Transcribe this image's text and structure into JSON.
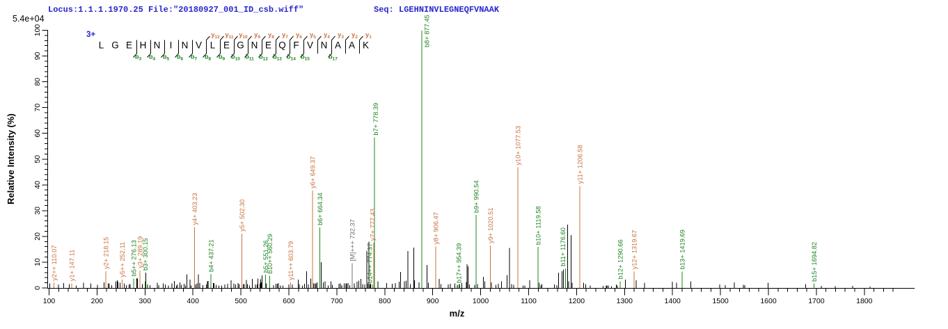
{
  "header": {
    "locus_file": "Locus:1.1.1.1970.25 File:\"20180927_001_ID_csb.wiff\"",
    "seq_prefix": "Seq: ",
    "sequence": "LGEHNINVLEGNEQFVNAAK",
    "max_intensity_label": "5.4e+04",
    "precursor_charge_label": "3+"
  },
  "colors": {
    "header_blue": "#2727CC",
    "y_ion_orange": "#C8703E",
    "b_ion_green": "#1E8420",
    "precursor_gray": "#707070",
    "axis_black": "#000000",
    "noise_black": "#000000"
  },
  "peptide_panel": {
    "residues": [
      "L",
      "G",
      "E",
      "H",
      "N",
      "I",
      "N",
      "V",
      "L",
      "E",
      "G",
      "N",
      "E",
      "Q",
      "F",
      "V",
      "N",
      "A",
      "A",
      "K"
    ],
    "b_ion_boundaries": [
      3,
      4,
      5,
      6,
      7,
      8,
      9,
      10,
      11,
      12,
      13,
      14,
      15,
      17
    ],
    "y_ion_boundaries": [
      8,
      9,
      10,
      11,
      12,
      13,
      14,
      15,
      16,
      17,
      18,
      19
    ],
    "y_ion_numbers": [
      12,
      11,
      10,
      9,
      8,
      7,
      6,
      5,
      4,
      3,
      2,
      1
    ]
  },
  "axes": {
    "x": {
      "label": "m/z",
      "major_ticks": [
        100,
        200,
        300,
        400,
        500,
        600,
        700,
        800,
        900,
        1000,
        1100,
        1200,
        1300,
        1400,
        1500,
        1600,
        1700,
        1800
      ],
      "minor_tick_step": 20,
      "minor_tick_max": 1860,
      "range_drawn": [
        100,
        1904
      ]
    },
    "y": {
      "label": "Relative  Intensity  (%)",
      "major_ticks": [
        0,
        10,
        20,
        30,
        40,
        50,
        60,
        70,
        80,
        90,
        100
      ],
      "minor_tick_step": 2,
      "range": [
        0,
        100
      ]
    }
  },
  "chart_data": {
    "type": "bar",
    "subtype": "annotated MS/MS stick spectrum",
    "xlabel": "m/z",
    "ylabel": "Relative  Intensity  (%)",
    "xlim": [
      100,
      1904
    ],
    "ylim": [
      0,
      100
    ],
    "grid": false,
    "annotated_peaks": [
      {
        "ion": "y2++",
        "mz": 110.07,
        "pct": 2.0,
        "series": "y",
        "label": "y2++ 110.07"
      },
      {
        "ion": "y1+",
        "mz": 147.11,
        "pct": 1.8,
        "series": "y",
        "label": "y1+ 147.11"
      },
      {
        "ion": "y2+",
        "mz": 218.15,
        "pct": 6.5,
        "series": "y",
        "label": "y2+ 218.15"
      },
      {
        "ion": "y5++",
        "mz": 252.11,
        "pct": 3.3,
        "series": "y",
        "label": "y5++ 252.11"
      },
      {
        "ion": "b5++",
        "mz": 276.13,
        "pct": 3.7,
        "series": "b",
        "label": "b5++ 276.13"
      },
      {
        "ion": "y3+",
        "mz": 289.19,
        "pct": 6.8,
        "series": "y",
        "label": "y3+ 289.19"
      },
      {
        "ion": "b3+",
        "mz": 300.15,
        "pct": 2.5,
        "series": "b",
        "label": "b3+ 300.15",
        "label_y": 389
      },
      {
        "ion": "y4+",
        "mz": 403.23,
        "pct": 23.6,
        "series": "y",
        "label": "y4+ 403.23"
      },
      {
        "ion": "b4+",
        "mz": 437.21,
        "pct": 5.4,
        "series": "b",
        "label": "b4+ 437.21"
      },
      {
        "ion": "y5+",
        "mz": 502.3,
        "pct": 21.1,
        "series": "y",
        "label": "y5+ 502.30"
      },
      {
        "ion": "b5+",
        "mz": 551.26,
        "pct": 5.1,
        "series": "b",
        "label": "b5+ 551.26"
      },
      {
        "ion": "b10++",
        "mz": 560.29,
        "pct": 4.7,
        "series": "b",
        "label": "b10++ 560.29"
      },
      {
        "ion": "y11++",
        "mz": 603.79,
        "pct": 2.2,
        "series": "y",
        "label": "y11++ 603.79"
      },
      {
        "ion": "y6+",
        "mz": 649.37,
        "pct": 37.8,
        "series": "y",
        "label": "y6+ 649.37"
      },
      {
        "ion": "b6+",
        "mz": 664.34,
        "pct": 23.5,
        "series": "b",
        "label": "b6+ 664.34"
      },
      {
        "ion": "[M]+++",
        "mz": 732.37,
        "pct": 9.6,
        "series": "precursor",
        "label": "[M]+++ 732.37"
      },
      {
        "ion": "b14++",
        "mz": 774.37,
        "pct": 1.3,
        "series": "b",
        "label": "b14++ 774.37",
        "label_dx": -4,
        "label_y": 407
      },
      {
        "ion": "y7+",
        "mz": 777.43,
        "pct": 17.5,
        "series": "y",
        "label": "y7+ 777.43",
        "label_dx": -2
      },
      {
        "ion": "b7+",
        "mz": 778.39,
        "pct": 58.4,
        "series": "b",
        "label": "b7+ 778.39",
        "label_dx": 1.5
      },
      {
        "ion": "b8+",
        "mz": 877.45,
        "pct": 99.8,
        "series": "b",
        "label": "b8+ 877.45",
        "label_dx": 7,
        "label_y": 68
      },
      {
        "ion": "y8+",
        "mz": 906.47,
        "pct": 16.1,
        "series": "y",
        "label": "y8+ 906.47"
      },
      {
        "ion": "b17++",
        "mz": 954.39,
        "pct": 1.4,
        "series": "b",
        "label": "b17++ 954.39",
        "label_y": 407
      },
      {
        "ion": "b9+",
        "mz": 990.54,
        "pct": 28.3,
        "series": "b",
        "label": "b9+ 990.54"
      },
      {
        "ion": "y9+",
        "mz": 1020.51,
        "pct": 16.5,
        "series": "y",
        "label": "y9+ 1020.51"
      },
      {
        "ion": "y10+",
        "mz": 1077.53,
        "pct": 46.8,
        "series": "y",
        "label": "y10+ 1077.53"
      },
      {
        "ion": "b10+",
        "mz": 1119.58,
        "pct": 15.9,
        "series": "b",
        "label": "b10+ 1119.58"
      },
      {
        "ion": "b11+",
        "mz": 1176.6,
        "pct": 7.6,
        "series": "b",
        "label": "b11+ 1176.60",
        "label_dx": -4
      },
      {
        "ion": "y11+",
        "mz": 1206.58,
        "pct": 39.6,
        "series": "y",
        "label": "y11+ 1206.58"
      },
      {
        "ion": "b12+",
        "mz": 1290.66,
        "pct": 2.6,
        "series": "b",
        "label": "b12+ 1290.66"
      },
      {
        "ion": "y12+",
        "mz": 1319.67,
        "pct": 6.4,
        "series": "y",
        "label": "y12+ 1319.67"
      },
      {
        "ion": "b13+",
        "mz": 1419.69,
        "pct": 6.4,
        "series": "b",
        "label": "b13+ 1419.69"
      },
      {
        "ion": "b15+",
        "mz": 1694.82,
        "pct": 1.8,
        "series": "b",
        "label": "b15+ 1694.82",
        "label_y": 405
      }
    ],
    "noise_peaks": [
      [
        101.5,
        1.7
      ],
      [
        119.4,
        1.3
      ],
      [
        130.5,
        1.9
      ],
      [
        142.2,
        1.5
      ],
      [
        156.7,
        1.0
      ],
      [
        171.8,
        2.0
      ],
      [
        186.8,
        1.7
      ],
      [
        200.9,
        1.2
      ],
      [
        214.7,
        2.1
      ],
      [
        223.7,
        1.8
      ],
      [
        225.7,
        1.8
      ],
      [
        230.6,
        1.1
      ],
      [
        239.6,
        2.6
      ],
      [
        242.2,
        3.0
      ],
      [
        243.7,
        2.4
      ],
      [
        247.9,
        2.0
      ],
      [
        257.0,
        1.7
      ],
      [
        260.8,
        1.1
      ],
      [
        267.0,
        1.3
      ],
      [
        269.4,
        1.5
      ],
      [
        283.2,
        3.8
      ],
      [
        284.6,
        3.6
      ],
      [
        294.3,
        1.5
      ],
      [
        301.4,
        6.0
      ],
      [
        305.3,
        1.4
      ],
      [
        310.2,
        1.1
      ],
      [
        325.4,
        2.0
      ],
      [
        328.6,
        1.1
      ],
      [
        338.3,
        1.7
      ],
      [
        342.6,
        1.4
      ],
      [
        348.7,
        1.0
      ],
      [
        356.4,
        1.8
      ],
      [
        361.1,
        2.7
      ],
      [
        365.3,
        1.0
      ],
      [
        367.8,
        1.3
      ],
      [
        372.7,
        2.1
      ],
      [
        375.8,
        1.2
      ],
      [
        381.3,
        1.6
      ],
      [
        384.3,
        0.9
      ],
      [
        387.1,
        5.2
      ],
      [
        394.2,
        3.2
      ],
      [
        396.1,
        0.9
      ],
      [
        405.2,
        1.3
      ],
      [
        408.7,
        1.8
      ],
      [
        411.6,
        5.3
      ],
      [
        414.5,
        1.9
      ],
      [
        421.0,
        1.1
      ],
      [
        428.0,
        1.4
      ],
      [
        430.4,
        2.5
      ],
      [
        431.5,
        2.7
      ],
      [
        442.8,
        1.9
      ],
      [
        444.0,
        1.9
      ],
      [
        448.3,
        1.2
      ],
      [
        453.8,
        0.9
      ],
      [
        459.9,
        0.9
      ],
      [
        466.7,
        1.4
      ],
      [
        472.2,
        1.6
      ],
      [
        479.6,
        3.0
      ],
      [
        485.7,
        1.8
      ],
      [
        489.3,
        1.4
      ],
      [
        494.3,
        1.9
      ],
      [
        496.2,
        1.5
      ],
      [
        504.9,
        1.5
      ],
      [
        507.1,
        1.5
      ],
      [
        511.6,
        3.1
      ],
      [
        514.0,
        1.5
      ],
      [
        517.7,
        1.0
      ],
      [
        523.8,
        3.5
      ],
      [
        530.0,
        1.4
      ],
      [
        533.6,
        1.4
      ],
      [
        535.5,
        3.6
      ],
      [
        539.7,
        1.7
      ],
      [
        540.9,
        3.4
      ],
      [
        542.9,
        2.1
      ],
      [
        544.1,
        4.9
      ],
      [
        552.6,
        1.8
      ],
      [
        568.0,
        1.1
      ],
      [
        573.5,
        1.6
      ],
      [
        575.9,
        1.6
      ],
      [
        578.3,
        1.9
      ],
      [
        582.5,
        1.0
      ],
      [
        588.0,
        1.0
      ],
      [
        600.3,
        1.4
      ],
      [
        607.0,
        1.3
      ],
      [
        619.9,
        3.3
      ],
      [
        621.8,
        1.5
      ],
      [
        628.5,
        1.0
      ],
      [
        632.3,
        1.6
      ],
      [
        637.1,
        6.5
      ],
      [
        640.9,
        1.4
      ],
      [
        645.8,
        3.7
      ],
      [
        651.3,
        1.7
      ],
      [
        654.4,
        1.8
      ],
      [
        656.8,
        1.8
      ],
      [
        658.7,
        2.2
      ],
      [
        667.4,
        10.0
      ],
      [
        671.5,
        2.1
      ],
      [
        675.8,
        2.5
      ],
      [
        681.7,
        0.9
      ],
      [
        687.9,
        2.5
      ],
      [
        691.0,
        1.2
      ],
      [
        704.5,
        1.6
      ],
      [
        707.5,
        1.7
      ],
      [
        710.5,
        1.1
      ],
      [
        715.5,
        1.7
      ],
      [
        719.0,
        1.7
      ],
      [
        720.4,
        1.7
      ],
      [
        723.4,
        1.9
      ],
      [
        727.1,
        1.1
      ],
      [
        736.4,
        1.7
      ],
      [
        742.5,
        2.4
      ],
      [
        746.1,
        2.9
      ],
      [
        749.9,
        3.5
      ],
      [
        753.5,
        1.5
      ],
      [
        758.4,
        1.3
      ],
      [
        762.9,
        14.5
      ],
      [
        764.6,
        1.8
      ],
      [
        766.7,
        18.0
      ],
      [
        769.0,
        1.3
      ],
      [
        770.6,
        1.7
      ],
      [
        786.1,
        2.6
      ],
      [
        804.0,
        1.9
      ],
      [
        815.2,
        1.6
      ],
      [
        821.7,
        1.9
      ],
      [
        829.7,
        2.4
      ],
      [
        833.0,
        6.2
      ],
      [
        841.0,
        2.6
      ],
      [
        844.2,
        2.9
      ],
      [
        848.0,
        14.3
      ],
      [
        853.0,
        1.5
      ],
      [
        860.6,
        15.6
      ],
      [
        862.1,
        3.0
      ],
      [
        871.7,
        2.2
      ],
      [
        887.8,
        8.9
      ],
      [
        891.1,
        2.0
      ],
      [
        913.8,
        3.5
      ],
      [
        917.0,
        1.5
      ],
      [
        932.1,
        1.4
      ],
      [
        936.7,
        1.6
      ],
      [
        945.9,
        1.7
      ],
      [
        951.4,
        1.2
      ],
      [
        956.0,
        1.5
      ],
      [
        960.7,
        1.9
      ],
      [
        970.4,
        2.3
      ],
      [
        971.7,
        9.2
      ],
      [
        973.6,
        8.4
      ],
      [
        976.6,
        1.3
      ],
      [
        987.4,
        1.2
      ],
      [
        993.3,
        1.5
      ],
      [
        1005.8,
        4.3
      ],
      [
        1008.5,
        2.5
      ],
      [
        1022.2,
        2.2
      ],
      [
        1032.0,
        1.2
      ],
      [
        1037.0,
        1.6
      ],
      [
        1043.1,
        2.6
      ],
      [
        1055.0,
        5.0
      ],
      [
        1060.3,
        15.5
      ],
      [
        1064.3,
        1.5
      ],
      [
        1068.9,
        1.2
      ],
      [
        1088.1,
        1.0
      ],
      [
        1092.0,
        1.0
      ],
      [
        1102.0,
        3.0
      ],
      [
        1121.5,
        2.0
      ],
      [
        1125.7,
        1.1
      ],
      [
        1127.3,
        1.5
      ],
      [
        1153.4,
        1.3
      ],
      [
        1158.8,
        1.1
      ],
      [
        1162.6,
        6.0
      ],
      [
        1169.5,
        6.5
      ],
      [
        1172.3,
        7.2
      ],
      [
        1181.1,
        24.6
      ],
      [
        1183.4,
        2.5
      ],
      [
        1188.5,
        20.5
      ],
      [
        1190.7,
        2.0
      ],
      [
        1215.0,
        2.0
      ],
      [
        1218.7,
        1.5
      ],
      [
        1228.4,
        1.0
      ],
      [
        1255.3,
        0.8
      ],
      [
        1261.5,
        1.0
      ],
      [
        1263.4,
        0.9
      ],
      [
        1266.3,
        0.9
      ],
      [
        1272.5,
        0.7
      ],
      [
        1283.0,
        1.4
      ],
      [
        1285.0,
        1.0
      ],
      [
        1301.5,
        3.2
      ],
      [
        1323.9,
        3.0
      ],
      [
        1341.6,
        2.0
      ],
      [
        1399.8,
        2.4
      ],
      [
        1408.6,
        2.0
      ],
      [
        1438.5,
        2.5
      ],
      [
        1498.6,
        1.3
      ],
      [
        1510.3,
        1.1
      ],
      [
        1529.2,
        2.2
      ],
      [
        1547.8,
        1.2
      ],
      [
        1550.7,
        1.1
      ],
      [
        1599.2,
        2.0
      ],
      [
        1677.9,
        1.5
      ],
      [
        1710.4,
        0.8
      ],
      [
        1739.4,
        0.7
      ],
      [
        1775.7,
        0.8
      ],
      [
        1812.0,
        0.6
      ]
    ]
  }
}
